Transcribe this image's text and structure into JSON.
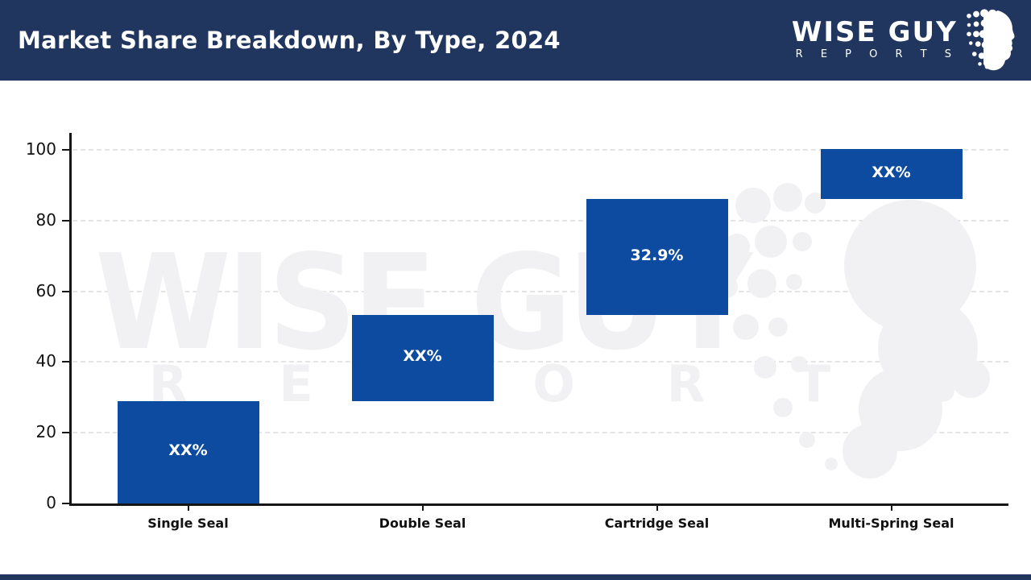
{
  "header": {
    "title": "Market Share Breakdown, By Type, 2024",
    "bg_color": "#21365F",
    "logo": {
      "line1": "WISE GUY",
      "line2": "R E P O R T S"
    }
  },
  "watermark": {
    "line1": "WISE GUY",
    "line2": "R E P O R T S"
  },
  "chart_data": {
    "type": "bar",
    "subtype": "floating-waterfall",
    "title": "Market Share Breakdown, By Type, 2024",
    "categories": [
      "Single Seal",
      "Double Seal",
      "Cartridge Seal",
      "Multi-Spring Seal"
    ],
    "bars": [
      {
        "category": "Single Seal",
        "start": 0,
        "end": 29,
        "value": 29.0,
        "label": "XX%"
      },
      {
        "category": "Double Seal",
        "start": 29,
        "end": 53.3,
        "value": 24.3,
        "label": "XX%"
      },
      {
        "category": "Cartridge Seal",
        "start": 53.3,
        "end": 86.2,
        "value": 32.9,
        "label": "32.9%"
      },
      {
        "category": "Multi-Spring Seal",
        "start": 86.2,
        "end": 100.2,
        "value": 14.0,
        "label": "XX%"
      }
    ],
    "yticks": [
      0,
      20,
      40,
      60,
      80,
      100
    ],
    "ylim": [
      0,
      104
    ],
    "xlabel": "",
    "ylabel": "",
    "grid": "horizontal-dashed",
    "legend": "none",
    "bar_color": "#0D4BA0",
    "label_color": "#FFFFFF",
    "axis_color": "#161616"
  },
  "footer": {
    "bg_color": "#21365F"
  }
}
